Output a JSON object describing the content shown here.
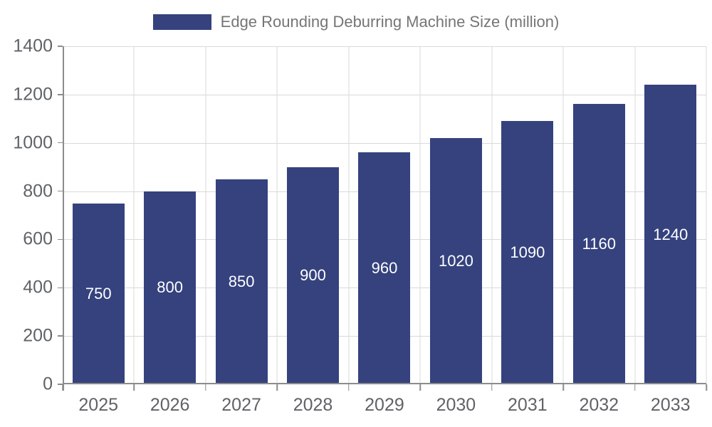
{
  "chart_data": {
    "type": "bar",
    "title": "Edge Rounding Deburring Machine Size (million)",
    "categories": [
      "2025",
      "2026",
      "2027",
      "2028",
      "2029",
      "2030",
      "2031",
      "2032",
      "2033"
    ],
    "values": [
      750,
      800,
      850,
      900,
      960,
      1020,
      1090,
      1160,
      1240
    ],
    "xlabel": "",
    "ylabel": "",
    "ylim": [
      0,
      1400
    ],
    "yticks": [
      0,
      200,
      400,
      600,
      800,
      1000,
      1200,
      1400
    ],
    "grid": true,
    "legend_position": "top",
    "value_labels": "inside-center",
    "colors": {
      "bar": "#35427e",
      "value_label": "#ffffff",
      "grid": "#d9d9d9",
      "axis": "#8c8c8c",
      "tick_label": "#5f6368",
      "legend_text": "#757575",
      "background": "#ffffff"
    }
  }
}
